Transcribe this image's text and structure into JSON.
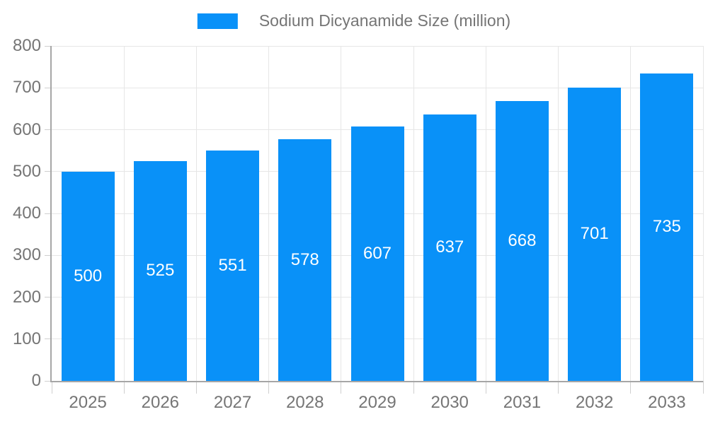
{
  "legend": {
    "label": "Sodium Dicyanamide Size (million)"
  },
  "chart_data": {
    "type": "bar",
    "title": "",
    "categories": [
      "2025",
      "2026",
      "2027",
      "2028",
      "2029",
      "2030",
      "2031",
      "2032",
      "2033"
    ],
    "values": [
      500,
      525,
      551,
      578,
      607,
      637,
      668,
      701,
      735
    ],
    "series_name": "Sodium Dicyanamide Size (million)",
    "xlabel": "",
    "ylabel": "",
    "ylim": [
      0,
      800
    ],
    "ytick_step": 100,
    "ytick_labels": [
      "0",
      "100",
      "200",
      "300",
      "400",
      "500",
      "600",
      "700",
      "800"
    ],
    "grid": true,
    "legend_position": "top-center",
    "value_labels": "inside-center",
    "colors": {
      "bar": "#0991F8",
      "value_label": "#FFFFFF",
      "axis": "#A6A6A6",
      "grid": "#E6E6E6",
      "tick": "#CFCFCF",
      "tick_label": "#757575"
    }
  }
}
